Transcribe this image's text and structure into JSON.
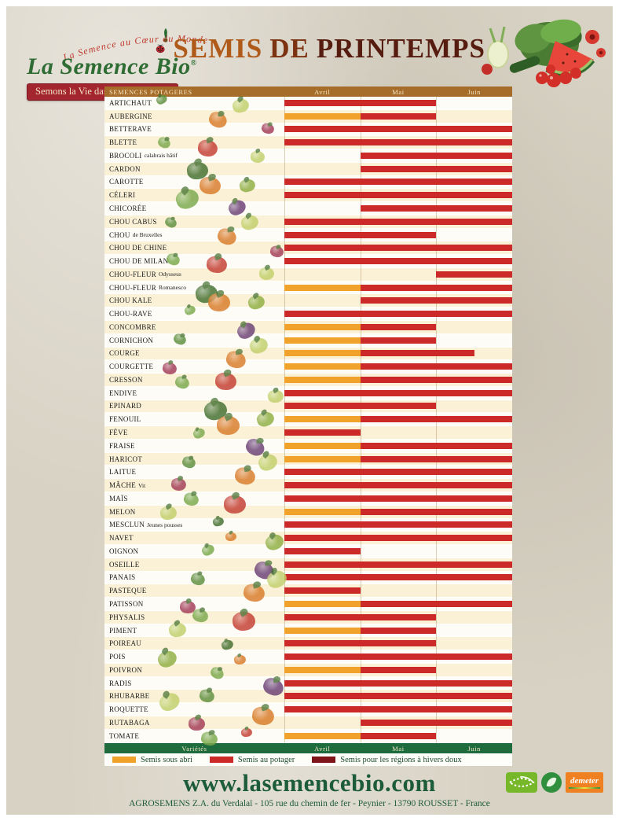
{
  "header": {
    "logo": {
      "arc_text": "La Semence au Cœur du Monde",
      "brand": "La Semence Bio",
      "brand_reg": "®",
      "tagline": "Semons la Vie dans nos assiettes !"
    },
    "title": "SEMIS DE PRINTEMPS"
  },
  "table": {
    "header_label": "SEMENCES POTAGERES",
    "footer_label": "Variétés"
  },
  "chart_data": {
    "type": "bar",
    "variant": "gantt-sowing-calendar",
    "title": "SEMIS DE PRINTEMPS",
    "months": [
      "Avril",
      "Mai",
      "Juin"
    ],
    "axis_note": "Bar positions in month units: 0 = start Avril, 1 = start Mai, 2 = start Juin, 3 = end Juin. Segment types: abri = Semis sous abri (orange), potager = Semis au potager (red).",
    "rows": [
      {
        "name": "ARTICHAUT",
        "segments": [
          [
            "potager",
            0,
            2
          ]
        ]
      },
      {
        "name": "AUBERGINE",
        "segments": [
          [
            "abri",
            0,
            1
          ],
          [
            "potager",
            1,
            2
          ]
        ]
      },
      {
        "name": "BETTERAVE",
        "segments": [
          [
            "potager",
            0,
            3
          ]
        ]
      },
      {
        "name": "BLETTE",
        "segments": [
          [
            "potager",
            0,
            3
          ]
        ]
      },
      {
        "name": "BROCOLI",
        "sub": "calabrais hâtif",
        "segments": [
          [
            "potager",
            1,
            3
          ]
        ]
      },
      {
        "name": "CARDON",
        "segments": [
          [
            "potager",
            1,
            3
          ]
        ]
      },
      {
        "name": "CAROTTE",
        "segments": [
          [
            "potager",
            0,
            3
          ]
        ]
      },
      {
        "name": "CÉLERI",
        "segments": [
          [
            "potager",
            0,
            3
          ]
        ]
      },
      {
        "name": "CHICORÉE",
        "segments": [
          [
            "potager",
            1,
            3
          ]
        ]
      },
      {
        "name": "CHOU CABUS",
        "segments": [
          [
            "potager",
            0,
            3
          ]
        ]
      },
      {
        "name": "CHOU",
        "sub": "de Bruxelles",
        "segments": [
          [
            "potager",
            0,
            2
          ]
        ]
      },
      {
        "name": "CHOU DE CHINE",
        "segments": [
          [
            "potager",
            0,
            3
          ]
        ]
      },
      {
        "name": "CHOU DE MILAN",
        "segments": [
          [
            "potager",
            0,
            3
          ]
        ]
      },
      {
        "name": "CHOU-FLEUR",
        "sub": "Odysseus",
        "segments": [
          [
            "potager",
            2,
            3
          ]
        ]
      },
      {
        "name": "CHOU-FLEUR",
        "sub": "Romanesco",
        "segments": [
          [
            "abri",
            0,
            1
          ],
          [
            "potager",
            1,
            3
          ]
        ]
      },
      {
        "name": "CHOU KALE",
        "segments": [
          [
            "potager",
            1,
            3
          ]
        ]
      },
      {
        "name": "CHOU-RAVE",
        "segments": [
          [
            "potager",
            0,
            3
          ]
        ]
      },
      {
        "name": "CONCOMBRE",
        "segments": [
          [
            "abri",
            0,
            1
          ],
          [
            "potager",
            1,
            2
          ]
        ]
      },
      {
        "name": "CORNICHON",
        "segments": [
          [
            "abri",
            0,
            1
          ],
          [
            "potager",
            1,
            2
          ]
        ]
      },
      {
        "name": "COURGE",
        "segments": [
          [
            "abri",
            0,
            1
          ],
          [
            "potager",
            1,
            2.5
          ]
        ]
      },
      {
        "name": "COURGETTE",
        "segments": [
          [
            "abri",
            0,
            1
          ],
          [
            "potager",
            1,
            3
          ]
        ]
      },
      {
        "name": "CRESSON",
        "segments": [
          [
            "abri",
            0,
            1
          ],
          [
            "potager",
            1,
            3
          ]
        ]
      },
      {
        "name": "ENDIVE",
        "segments": [
          [
            "potager",
            0,
            3
          ]
        ]
      },
      {
        "name": "EPINARD",
        "segments": [
          [
            "potager",
            0,
            2
          ]
        ]
      },
      {
        "name": "FENOUIL",
        "segments": [
          [
            "abri",
            0,
            1
          ],
          [
            "potager",
            1,
            3
          ]
        ]
      },
      {
        "name": "FÈVE",
        "segments": [
          [
            "potager",
            0,
            1
          ]
        ]
      },
      {
        "name": "FRAISE",
        "segments": [
          [
            "abri",
            0,
            1
          ],
          [
            "potager",
            1,
            3
          ]
        ]
      },
      {
        "name": "HARICOT",
        "segments": [
          [
            "abri",
            0,
            1
          ],
          [
            "potager",
            1,
            3
          ]
        ]
      },
      {
        "name": "LAITUE",
        "segments": [
          [
            "potager",
            0,
            3
          ]
        ]
      },
      {
        "name": "MÂCHE",
        "sub": "Vit",
        "segments": [
          [
            "potager",
            0,
            3
          ]
        ]
      },
      {
        "name": "MAÏS",
        "segments": [
          [
            "potager",
            0,
            3
          ]
        ]
      },
      {
        "name": "MELON",
        "segments": [
          [
            "abri",
            0,
            1
          ],
          [
            "potager",
            1,
            3
          ]
        ]
      },
      {
        "name": "MESCLUN",
        "sub": "Jeunes pousses",
        "segments": [
          [
            "potager",
            0,
            3
          ]
        ]
      },
      {
        "name": "NAVET",
        "segments": [
          [
            "potager",
            0,
            3
          ]
        ]
      },
      {
        "name": "OIGNON",
        "segments": [
          [
            "potager",
            0,
            1
          ]
        ]
      },
      {
        "name": "OSEILLE",
        "segments": [
          [
            "potager",
            0,
            3
          ]
        ]
      },
      {
        "name": "PANAIS",
        "segments": [
          [
            "potager",
            0,
            3
          ]
        ]
      },
      {
        "name": "PASTEQUE",
        "segments": [
          [
            "potager",
            0,
            1
          ]
        ]
      },
      {
        "name": "PATISSON",
        "segments": [
          [
            "abri",
            0,
            1
          ],
          [
            "potager",
            1,
            3
          ]
        ]
      },
      {
        "name": "PHYSALIS",
        "segments": [
          [
            "potager",
            0,
            2
          ]
        ]
      },
      {
        "name": "PIMENT",
        "segments": [
          [
            "abri",
            0,
            1
          ],
          [
            "potager",
            1,
            2
          ]
        ]
      },
      {
        "name": "POIREAU",
        "segments": [
          [
            "potager",
            0,
            2
          ]
        ]
      },
      {
        "name": "POIS",
        "segments": [
          [
            "potager",
            0,
            3
          ]
        ]
      },
      {
        "name": "POIVRON",
        "segments": [
          [
            "abri",
            0,
            1
          ],
          [
            "potager",
            1,
            2
          ]
        ]
      },
      {
        "name": "RADIS",
        "segments": [
          [
            "potager",
            0,
            3
          ]
        ]
      },
      {
        "name": "RHUBARBE",
        "segments": [
          [
            "potager",
            0,
            3
          ]
        ]
      },
      {
        "name": "ROQUETTE",
        "segments": [
          [
            "potager",
            0,
            3
          ]
        ]
      },
      {
        "name": "RUTABAGA",
        "segments": [
          [
            "potager",
            1,
            3
          ]
        ]
      },
      {
        "name": "TOMATE",
        "segments": [
          [
            "abri",
            0,
            1
          ],
          [
            "potager",
            1,
            2
          ]
        ]
      }
    ]
  },
  "legend": {
    "items": [
      {
        "type": "abri",
        "label": "Semis sous abri",
        "color": "#f0a22b"
      },
      {
        "type": "potager",
        "label": "Semis au potager",
        "color": "#cc2a28"
      },
      {
        "type": "doux",
        "label": "Semis pour les régions à hivers doux",
        "color": "#7d1417"
      }
    ]
  },
  "footer": {
    "website": "www.lasemencebio.com",
    "address": "AGROSEMENS Z.A. du Verdalaï - 105 rue du chemin de fer - Peynier - 13790 ROUSSET - France",
    "demeter_label": "demeter"
  },
  "colors": {
    "paper": "#d8d2c4",
    "header_bar": "#a66c29",
    "footer_bar": "#1e6b3e",
    "row_even": "#fdfcf7",
    "row_odd": "#faf1d7",
    "abri_orange": "#f0a22b",
    "potager_red": "#cc2a28",
    "hivers_doux_maroon": "#7d1417",
    "brand_green": "#2f6d35",
    "tagline_red": "#a32530",
    "footer_text_green": "#1d5c3a"
  }
}
